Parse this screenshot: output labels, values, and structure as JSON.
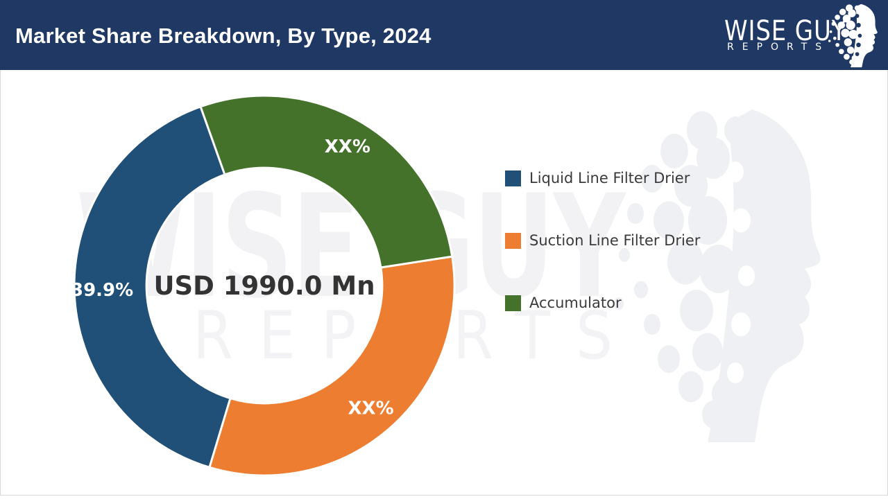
{
  "header": {
    "title": "Market Share Breakdown, By Type, 2024",
    "bg_color": "#1F3864",
    "logo": {
      "line1": "WISE GUY",
      "line2": "REPORTS"
    }
  },
  "watermark": {
    "line1": "WISE GUY",
    "line2": "REPORTS"
  },
  "chart_data": {
    "type": "donut",
    "title": "Market Share Breakdown, By Type, 2024",
    "center_label": "USD 1990.0 Mn",
    "start_clock_deg": -19.6,
    "direction": "counterclockwise",
    "inner_radius_ratio": 0.62,
    "legend_position": "right",
    "segments": [
      {
        "name": "Liquid Line Filter Drier",
        "value_pct": 39.9,
        "display_label": "39.9%",
        "color": "#205078"
      },
      {
        "name": "Suction Line Filter Drier",
        "value_pct": 32.1,
        "display_label": "XX%",
        "color": "#ED7D31"
      },
      {
        "name": "Accumulator",
        "value_pct": 28.0,
        "display_label": "XX%",
        "color": "#44722A"
      }
    ]
  }
}
